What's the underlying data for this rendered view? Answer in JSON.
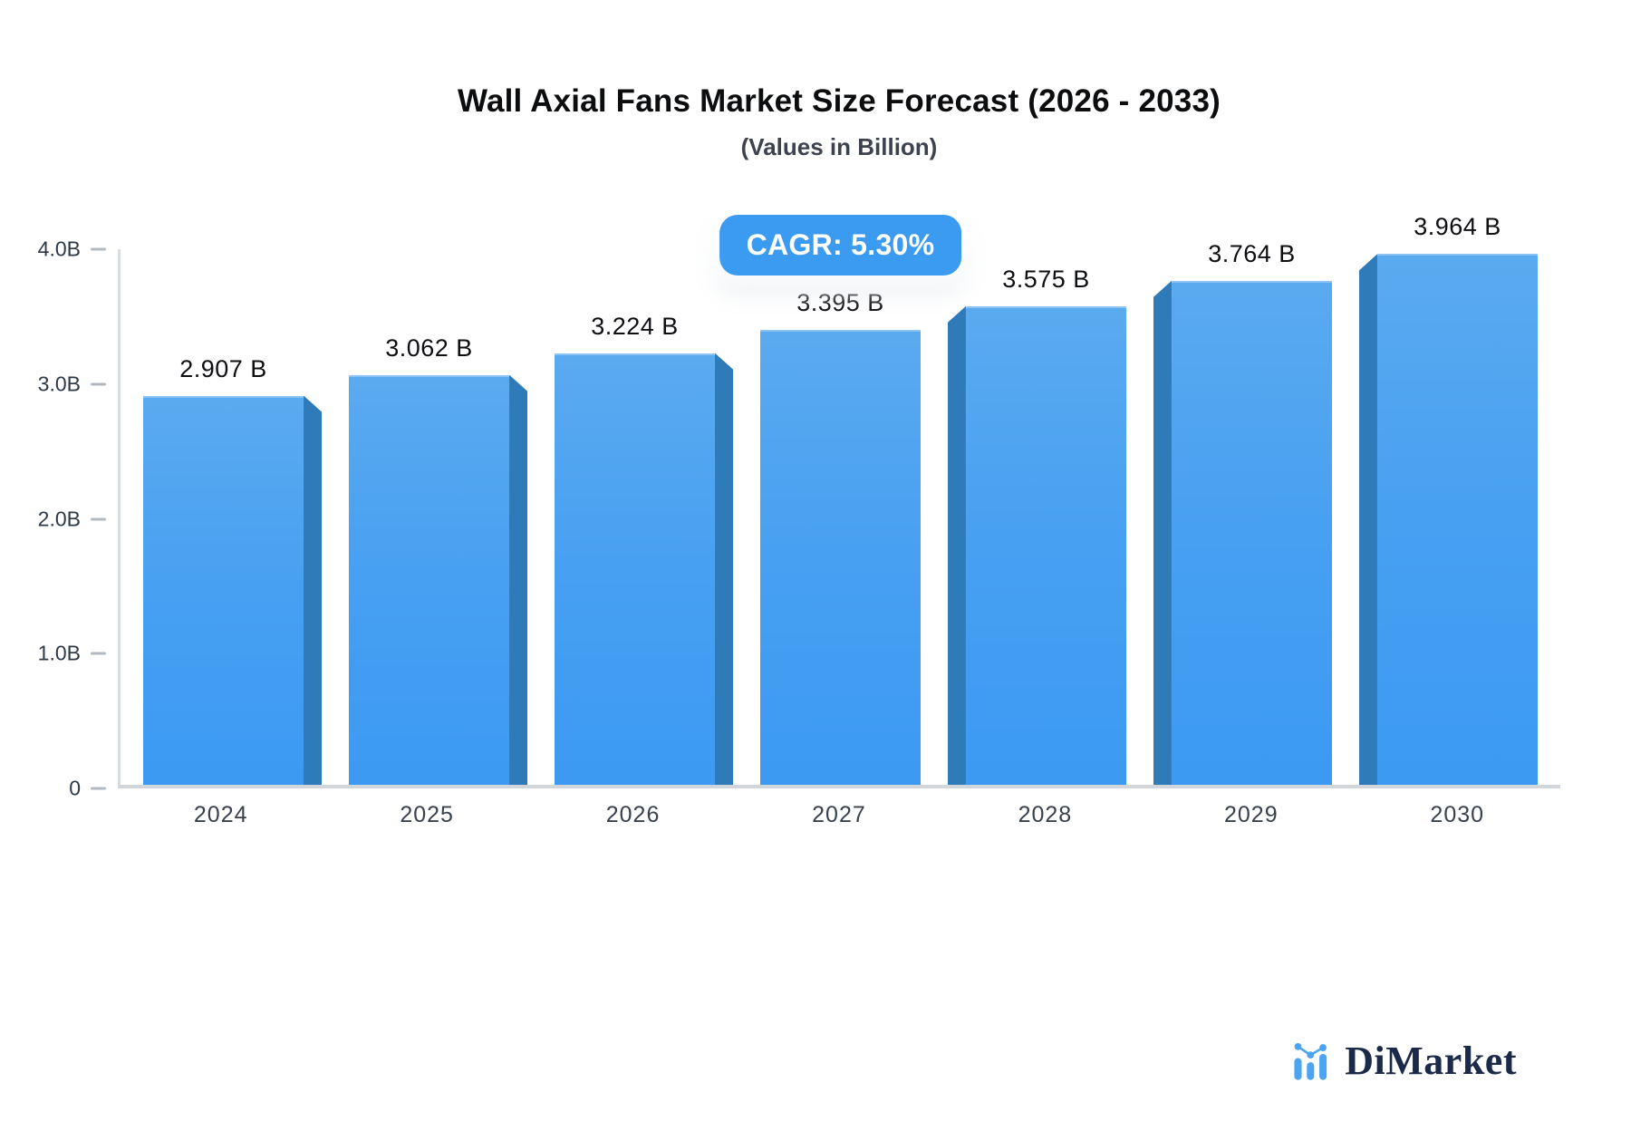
{
  "header": {
    "title": "Wall Axial Fans Market Size Forecast (2026 - 2033)",
    "subtitle": "(Values in Billion)"
  },
  "badge": {
    "label": "CAGR: 5.30%",
    "bg": "#3b9bf1",
    "text_color": "#ffffff"
  },
  "chart_data": {
    "type": "bar",
    "title": "Wall Axial Fans Market Size Forecast (2026 - 2033)",
    "subtitle": "(Values in Billion)",
    "categories": [
      "2024",
      "2025",
      "2026",
      "2027",
      "2028",
      "2029",
      "2030"
    ],
    "values": [
      2.907,
      3.062,
      3.224,
      3.395,
      3.575,
      3.764,
      3.964
    ],
    "value_labels": [
      "2.907 B",
      "3.062 B",
      "3.224 B",
      "3.395 B",
      "3.575 B",
      "3.764 B",
      "3.964 B"
    ],
    "xlabel": "",
    "ylabel": "",
    "ylim": [
      0,
      4
    ],
    "yticks": [
      {
        "value": 0,
        "label": "0"
      },
      {
        "value": 1,
        "label": "1.0B"
      },
      {
        "value": 2,
        "label": "2.0B"
      },
      {
        "value": 3,
        "label": "3.0B"
      },
      {
        "value": 4,
        "label": "4.0B"
      }
    ],
    "grid": false,
    "legend": false,
    "annotation": "CAGR: 5.30%"
  },
  "colors": {
    "bar_face_top": "#5aaaef",
    "bar_face_mid": "#469ff2",
    "bar_face_bottom": "#3c9af3",
    "bar_side": "#2f7ab9",
    "axis_line": "#d9dce1",
    "baseline": "#d2d6db",
    "tick": "#b3b9c1"
  },
  "logo": {
    "text": "DiMarket",
    "icon": "bar-chart-trend-icon",
    "text_color": "#1b2a49",
    "icon_color": "#4aa3f3"
  }
}
